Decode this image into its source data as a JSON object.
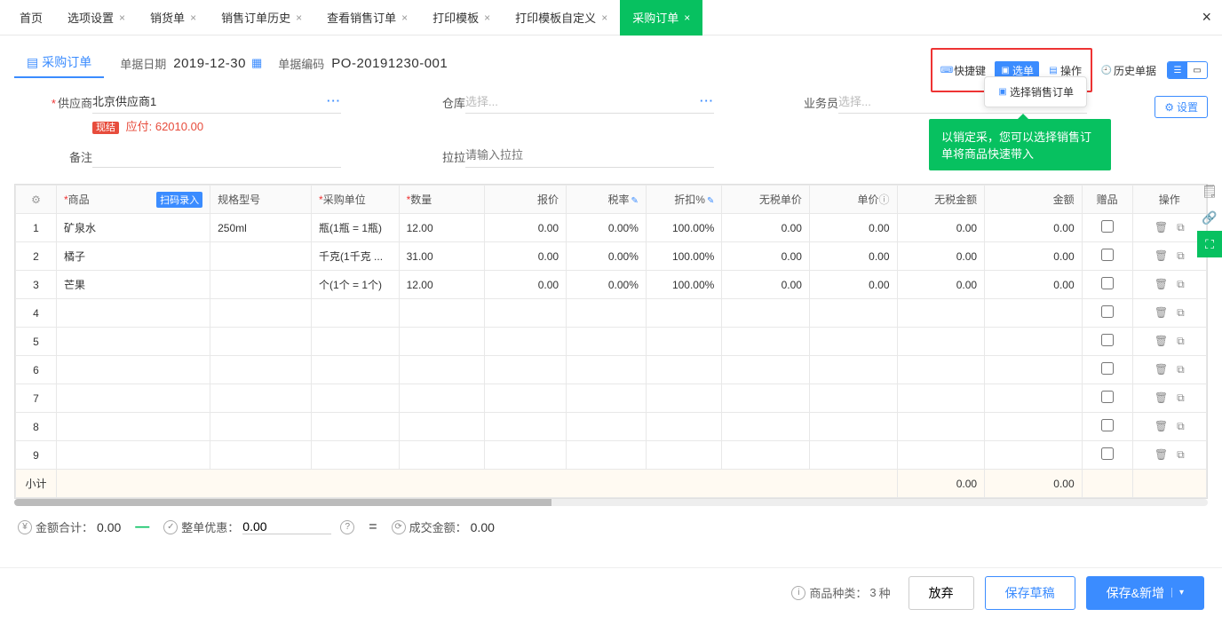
{
  "tabs": [
    {
      "label": "首页",
      "closable": false,
      "active": false
    },
    {
      "label": "选项设置",
      "closable": true,
      "active": false
    },
    {
      "label": "销货单",
      "closable": true,
      "active": false
    },
    {
      "label": "销售订单历史",
      "closable": true,
      "active": false
    },
    {
      "label": "查看销售订单",
      "closable": true,
      "active": false
    },
    {
      "label": "打印模板",
      "closable": true,
      "active": false
    },
    {
      "label": "打印模板自定义",
      "closable": true,
      "active": false
    },
    {
      "label": "采购订单",
      "closable": true,
      "active": true
    }
  ],
  "doc": {
    "title": "采购订单",
    "date_label": "单据日期",
    "date_value": "2019-12-30",
    "code_label": "单据编码",
    "code_value": "PO-20191230-001"
  },
  "toolbar": {
    "shortcut": "快捷键",
    "select_doc": "选单",
    "operate": "操作",
    "history": "历史单据",
    "settings": "设置",
    "dropdown_item": "选择销售订单",
    "tooltip": "以销定采，您可以选择销售订单将商品快速带入"
  },
  "form": {
    "supplier_label": "供应商",
    "supplier_value": "北京供应商1",
    "pay_tag": "现结",
    "pay_due": "应付: 62010.00",
    "warehouse_label": "仓库",
    "warehouse_placeholder": "选择...",
    "salesman_label": "业务员",
    "salesman_placeholder": "选择...",
    "remark_label": "备注",
    "lala_label": "拉拉",
    "lala_placeholder": "请输入拉拉"
  },
  "table": {
    "headers": {
      "idx": "",
      "product": "商品",
      "scan": "扫码录入",
      "spec": "规格型号",
      "unit": "采购单位",
      "qty": "数量",
      "price": "报价",
      "tax": "税率",
      "discount": "折扣%",
      "notax_price": "无税单价",
      "unit_price": "单价",
      "notax_amount": "无税金额",
      "amount": "金额",
      "gift": "赠品",
      "op": "操作"
    },
    "rows": [
      {
        "idx": "1",
        "product": "矿泉水",
        "spec": "250ml",
        "unit": "瓶(1瓶 = 1瓶)",
        "qty": "12.00",
        "price": "0.00",
        "tax": "0.00%",
        "discount": "100.00%",
        "notax_price": "0.00",
        "unit_price": "0.00",
        "notax_amount": "0.00",
        "amount": "0.00"
      },
      {
        "idx": "2",
        "product": "橘子",
        "spec": "",
        "unit": "千克(1千克 ...",
        "qty": "31.00",
        "price": "0.00",
        "tax": "0.00%",
        "discount": "100.00%",
        "notax_price": "0.00",
        "unit_price": "0.00",
        "notax_amount": "0.00",
        "amount": "0.00"
      },
      {
        "idx": "3",
        "product": "芒果",
        "spec": "",
        "unit": "个(1个 = 1个)",
        "qty": "12.00",
        "price": "0.00",
        "tax": "0.00%",
        "discount": "100.00%",
        "notax_price": "0.00",
        "unit_price": "0.00",
        "notax_amount": "0.00",
        "amount": "0.00"
      },
      {
        "idx": "4"
      },
      {
        "idx": "5"
      },
      {
        "idx": "6"
      },
      {
        "idx": "7"
      },
      {
        "idx": "8"
      },
      {
        "idx": "9"
      }
    ],
    "subtotal_label": "小计",
    "subtotal_notax": "0.00",
    "subtotal_amount": "0.00"
  },
  "totals": {
    "sum_label": "金额合计：",
    "sum_value": "0.00",
    "discount_label": "整单优惠：",
    "discount_value": "0.00",
    "deal_label": "成交金额：",
    "deal_value": "0.00"
  },
  "footer": {
    "kinds_label": "商品种类：",
    "kinds_value": "3",
    "kinds_unit": "种",
    "discard": "放弃",
    "draft": "保存草稿",
    "save": "保存&新增"
  }
}
